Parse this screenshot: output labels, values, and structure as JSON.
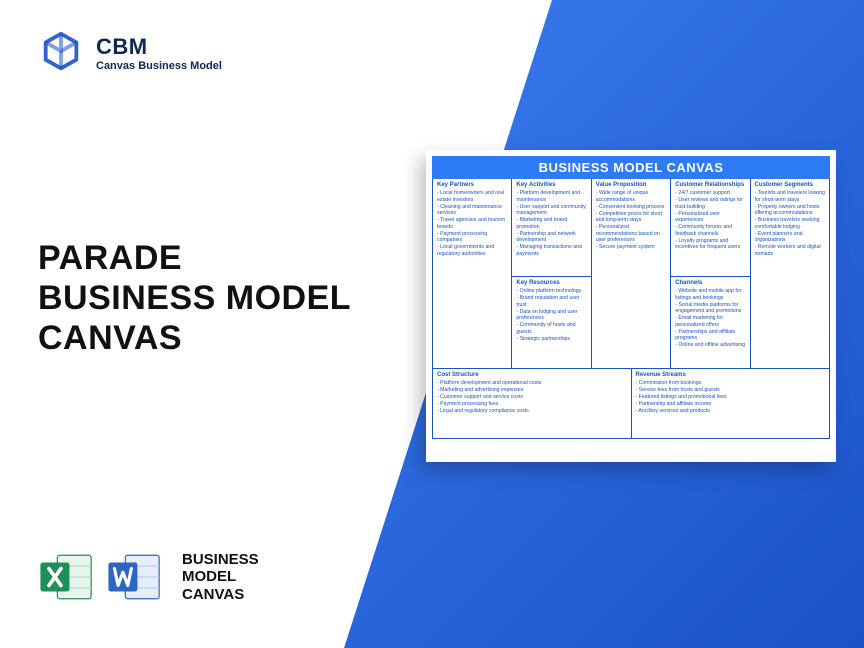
{
  "colors": {
    "brand_blue": "#1a52c8",
    "accent_blue": "#2e7bf6",
    "dark_navy": "#0e2954",
    "excel_green": "#1d8f5a",
    "word_blue": "#2b66c4",
    "text_black": "#111111",
    "white": "#ffffff"
  },
  "logo": {
    "abbr": "CBM",
    "full": "Canvas Business Model"
  },
  "title": {
    "line1": "PARADE",
    "line2": "BUSINESS MODEL",
    "line3": "CANVAS"
  },
  "bottom_label": {
    "line1": "BUSINESS",
    "line2": "MODEL",
    "line3": "CANVAS"
  },
  "canvas": {
    "heading": "BUSINESS MODEL CANVAS",
    "cells": {
      "kp": {
        "title": "Key Partners",
        "items": [
          "Local homeowners and real estate investors",
          "Cleaning and maintenance services",
          "Travel agencies and tourism boards",
          "Payment processing companies",
          "Local governments and regulatory authorities"
        ]
      },
      "ka": {
        "title": "Key Activities",
        "items": [
          "Platform development and maintenance",
          "User support and community management",
          "Marketing and brand promotion",
          "Partnership and network development",
          "Managing transactions and payments"
        ]
      },
      "kr": {
        "title": "Key Resources",
        "items": [
          "Online platform technology",
          "Brand reputation and user trust",
          "Data on lodging and user preferences",
          "Community of hosts and guests",
          "Strategic partnerships"
        ]
      },
      "vp": {
        "title": "Value Proposition",
        "items": [
          "Wide range of unique accommodations",
          "Convenient booking process",
          "Competitive prices for short and long-term stays",
          "Personalized recommendations based on user preferences",
          "Secure payment system"
        ]
      },
      "cr": {
        "title": "Customer Relationships",
        "items": [
          "24/7 customer support",
          "User reviews and ratings for trust-building",
          "Personalized user experiences",
          "Community forums and feedback channels",
          "Loyalty programs and incentives for frequent users"
        ]
      },
      "ch": {
        "title": "Channels",
        "items": [
          "Website and mobile app for listings and bookings",
          "Social media platforms for engagement and promotions",
          "Email marketing for personalized offers",
          "Partnerships and affiliate programs",
          "Online and offline advertising"
        ]
      },
      "cs": {
        "title": "Customer Segments",
        "items": [
          "Tourists and travelers looking for short-term stays",
          "Property owners and hosts offering accommodations",
          "Business travelers seeking comfortable lodging",
          "Event planners and organizations",
          "Remote workers and digital nomads"
        ]
      },
      "co": {
        "title": "Cost Structure",
        "items": [
          "Platform development and operational costs",
          "Marketing and advertising expenses",
          "Customer support and service costs",
          "Payment processing fees",
          "Legal and regulatory compliance costs"
        ]
      },
      "rs": {
        "title": "Revenue Streams",
        "items": [
          "Commission from bookings",
          "Service fees from hosts and guests",
          "Featured listings and promotional fees",
          "Partnership and affiliate income",
          "Ancillary services and products"
        ]
      }
    }
  }
}
